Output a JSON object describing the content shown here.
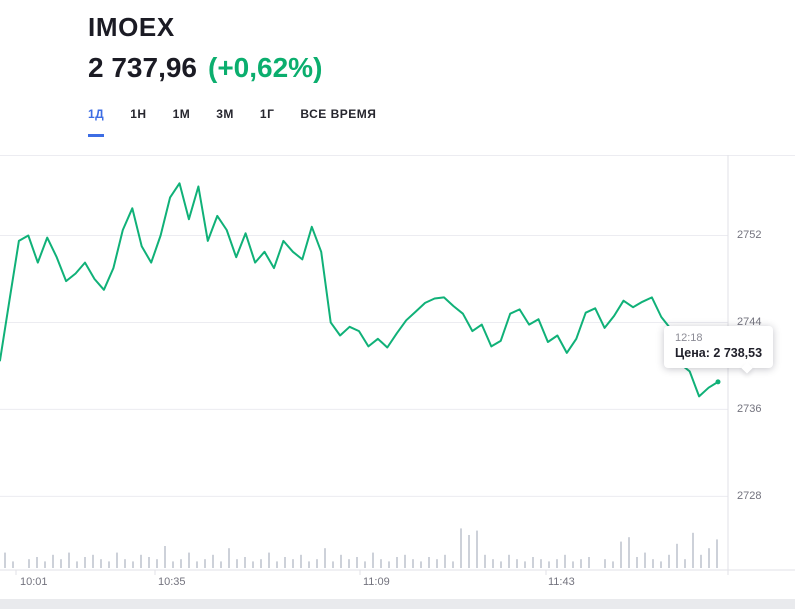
{
  "header": {
    "title": "IMOEX",
    "price": "2 737,96",
    "change": "(+0,62%)"
  },
  "tabs": [
    {
      "label": "1Д",
      "active": true
    },
    {
      "label": "1Н",
      "active": false
    },
    {
      "label": "1М",
      "active": false
    },
    {
      "label": "3М",
      "active": false
    },
    {
      "label": "1Г",
      "active": false
    },
    {
      "label": "ВСЕ ВРЕМЯ",
      "active": false
    }
  ],
  "tooltip": {
    "time": "12:18",
    "label": "Цена:",
    "value": "2 738,53"
  },
  "colors": {
    "line": "#10b178",
    "change_text": "#0bae6e",
    "active_tab": "#3d6de4",
    "grid": "#ececf1",
    "axis_line": "#e2e2e7",
    "axis_text": "#73737e",
    "volume": "#cdd1d9"
  },
  "chart_data": {
    "type": "line",
    "title": "IMOEX intraday price",
    "x_ticks": [
      "10:01",
      "10:35",
      "11:09",
      "11:43"
    ],
    "y_ticks": [
      2752,
      2744,
      2736,
      2728
    ],
    "ylim": [
      2721.6,
      2759.4
    ],
    "x_range": [
      "10:01",
      "12:18"
    ],
    "last_time": "12:18",
    "last_price": 2738.53,
    "prices": [
      2740.5,
      2746,
      2751.5,
      2752,
      2749.5,
      2751.8,
      2750,
      2747.8,
      2748.5,
      2749.5,
      2748,
      2747,
      2749,
      2752.5,
      2754.5,
      2751,
      2749.5,
      2752,
      2755.5,
      2756.8,
      2753.5,
      2756.5,
      2751.5,
      2753.8,
      2752.5,
      2750,
      2752.2,
      2749.5,
      2750.5,
      2749,
      2751.5,
      2750.5,
      2749.8,
      2752.8,
      2750.5,
      2744,
      2742.8,
      2743.6,
      2743.2,
      2741.8,
      2742.5,
      2741.7,
      2743,
      2744.2,
      2745,
      2745.8,
      2746.2,
      2746.3,
      2745.5,
      2744.8,
      2743.2,
      2743.8,
      2741.8,
      2742.3,
      2744.8,
      2745.2,
      2743.8,
      2744.3,
      2742.2,
      2742.8,
      2741.2,
      2742.5,
      2744.9,
      2745.3,
      2743.5,
      2744.6,
      2746,
      2745.4,
      2745.9,
      2746.3,
      2744.5,
      2743.4,
      2740.2,
      2739.5,
      2737.2,
      2738,
      2738.53
    ],
    "volumes": [
      0.35,
      0.15,
      0,
      0.2,
      0.25,
      0.15,
      0.3,
      0.2,
      0.35,
      0.15,
      0.25,
      0.3,
      0.2,
      0.15,
      0.35,
      0.2,
      0.15,
      0.3,
      0.25,
      0.2,
      0.5,
      0.15,
      0.2,
      0.35,
      0.15,
      0.2,
      0.3,
      0.15,
      0.45,
      0.2,
      0.25,
      0.15,
      0.2,
      0.35,
      0.15,
      0.25,
      0.2,
      0.3,
      0.15,
      0.2,
      0.45,
      0.15,
      0.3,
      0.2,
      0.25,
      0.15,
      0.35,
      0.2,
      0.15,
      0.25,
      0.3,
      0.2,
      0.15,
      0.25,
      0.2,
      0.3,
      0.15,
      0.9,
      0.75,
      0.85,
      0.3,
      0.2,
      0.15,
      0.3,
      0.2,
      0.15,
      0.25,
      0.2,
      0.15,
      0.2,
      0.3,
      0.15,
      0.2,
      0.25,
      0,
      0.2,
      0.15,
      0.6,
      0.7,
      0.25,
      0.35,
      0.2,
      0.15,
      0.3,
      0.55,
      0.2,
      0.8,
      0.3,
      0.45,
      0.65
    ]
  }
}
